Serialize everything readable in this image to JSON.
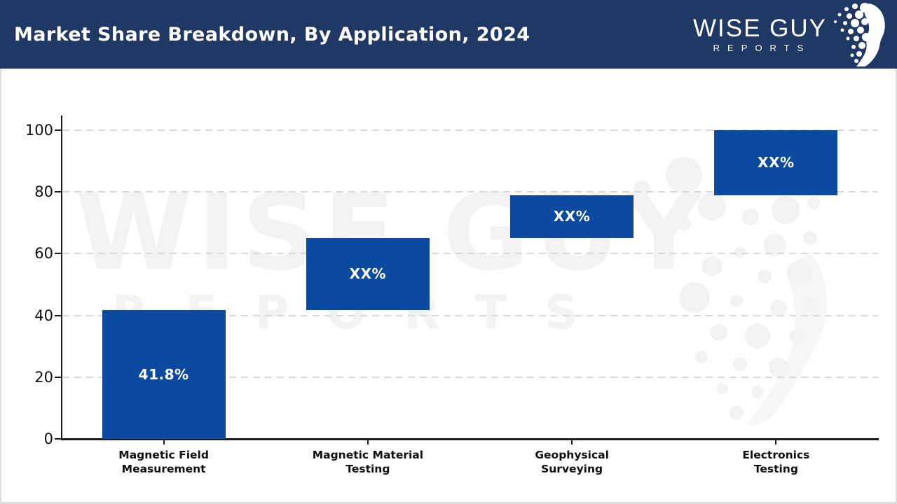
{
  "header": {
    "title": "Market Share Breakdown, By Application, 2024",
    "logo": {
      "line1": "WISE GUY",
      "line2": "REPORTS"
    },
    "background_color": "#1f3864"
  },
  "watermark": {
    "line1": "WISE GUY",
    "line2": "REPORTS"
  },
  "chart_data": {
    "type": "bar",
    "subtype": "waterfall",
    "title": "Market Share Breakdown, By Application, 2024",
    "categories": [
      "Magnetic Field\nMeasurement",
      "Magnetic Material\nTesting",
      "Geophysical\nSurveying",
      "Electronics\nTesting"
    ],
    "bars": [
      {
        "category": "Magnetic Field\nMeasurement",
        "start": 0,
        "end": 41.8,
        "label": "41.8%"
      },
      {
        "category": "Magnetic Material\nTesting",
        "start": 41.8,
        "end": 65,
        "label": "XX%"
      },
      {
        "category": "Geophysical\nSurveying",
        "start": 65,
        "end": 79,
        "label": "XX%"
      },
      {
        "category": "Electronics\nTesting",
        "start": 79,
        "end": 100,
        "label": "XX%"
      }
    ],
    "yticks": [
      0,
      20,
      40,
      60,
      80,
      100
    ],
    "ylim": [
      0,
      104.8
    ],
    "xlabel": "",
    "ylabel": "",
    "grid": "horizontal-dashed",
    "legend": "none",
    "bar_color": "#0b4a9e",
    "bar_label_color": "#ffffff",
    "axis_color": "#1c1c1c",
    "grid_color": "#d9d9d9"
  }
}
